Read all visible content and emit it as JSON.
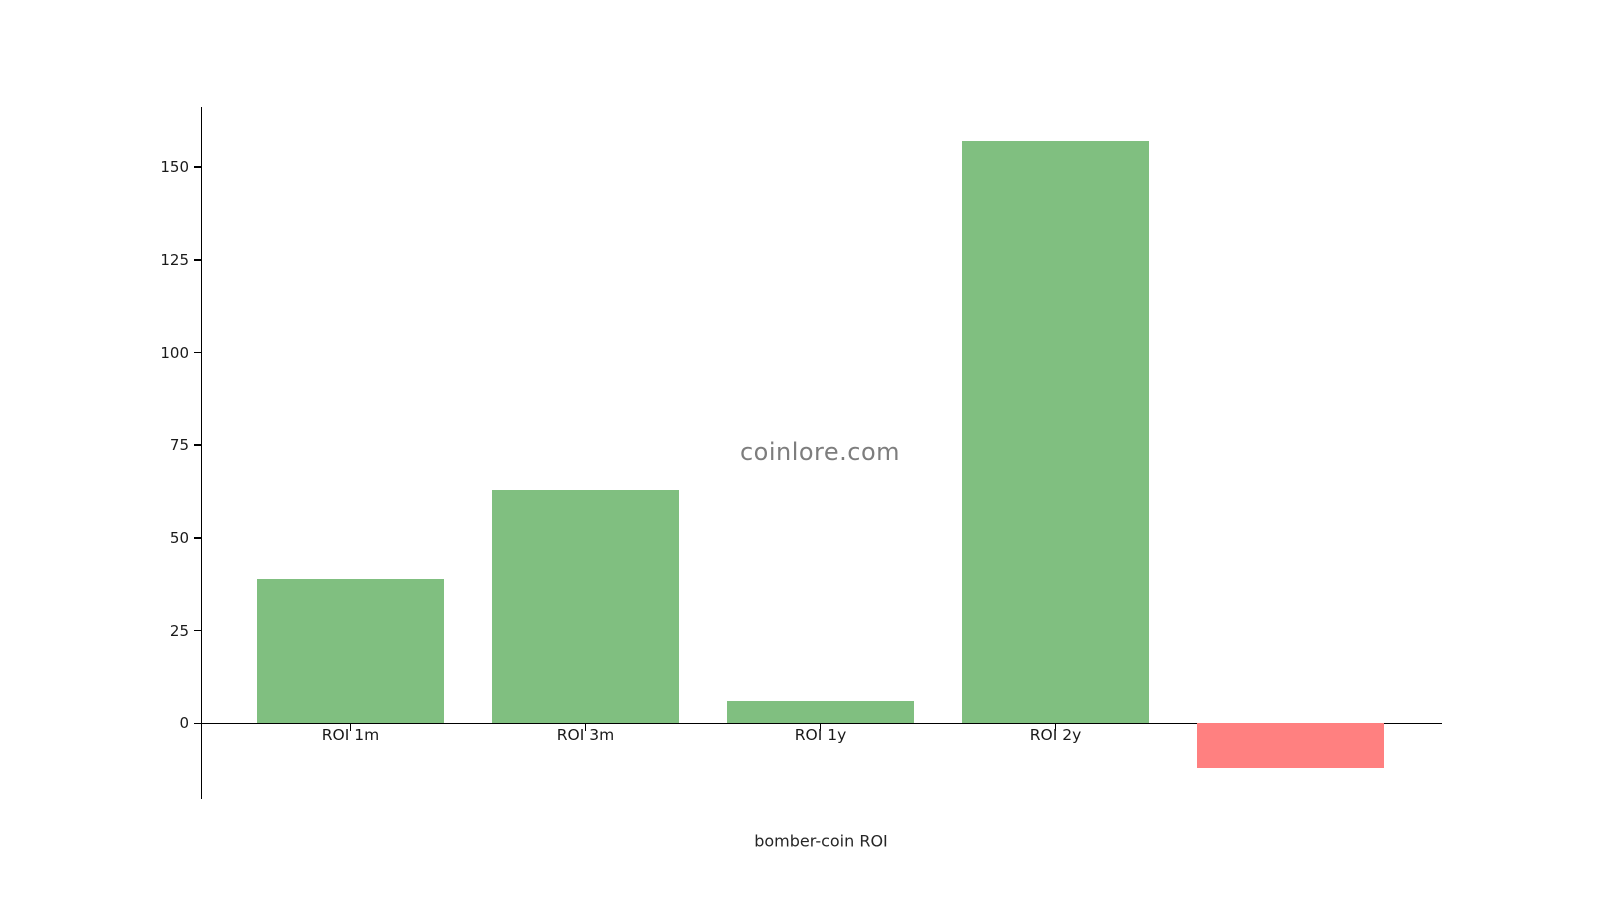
{
  "watermark": {
    "text": "coinlore.com"
  },
  "chart_data": {
    "type": "bar",
    "title": "bomber-coin ROI",
    "xlabel": "bomber-coin ROI",
    "ylabel": "",
    "categories": [
      "ROI 1m",
      "ROI 3m",
      "ROI 1y",
      "ROI 2y",
      ""
    ],
    "values": [
      39,
      63,
      6,
      157,
      -12
    ],
    "yticks": [
      0,
      25,
      50,
      75,
      100,
      125,
      150
    ],
    "ylim": [
      -21,
      166
    ],
    "grid": false,
    "legend": false,
    "watermark_text": "coinlore.com",
    "colors": {
      "positive_bar": "#80bf80",
      "negative_bar": "#ff8080",
      "axis": "#000000",
      "tick_label": "#1a1a1a",
      "title_text": "#262626",
      "watermark_text": "#7d7d7d",
      "background": "#ffffff"
    }
  }
}
